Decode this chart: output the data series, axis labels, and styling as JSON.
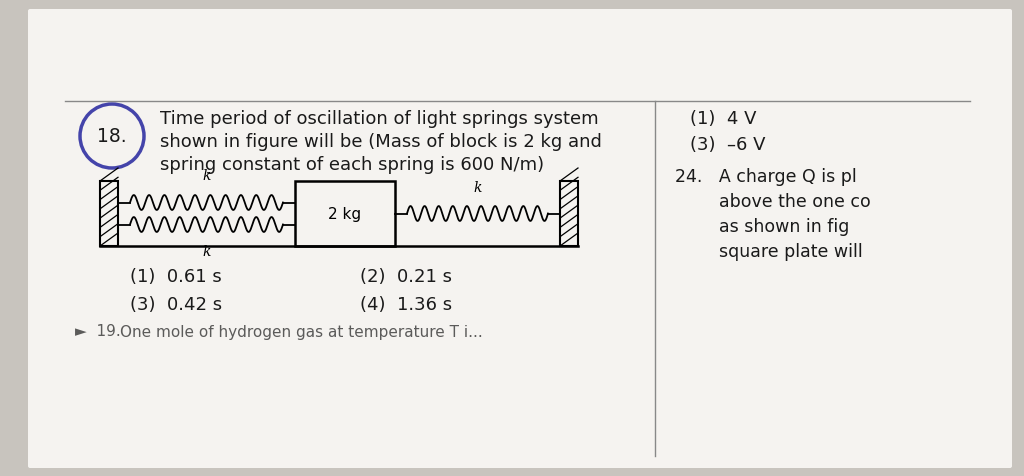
{
  "page_bg": "#f0eeec",
  "paper_bg": "#f5f3f0",
  "outer_bg": "#c8c4be",
  "question_number": "18.",
  "question_text_line1": "Time period of oscillation of light springs system",
  "question_text_line2": "shown in figure will be (Mass of block is 2 kg and",
  "question_text_line3": "spring constant of each spring is 600 N/m)",
  "options_left": [
    "(1)  0.61 s",
    "(3)  0.42 s"
  ],
  "options_right": [
    "(2)  0.21 s",
    "(4)  1.36 s"
  ],
  "right_col_line1": "(1)  4 V",
  "right_col_line2": "(3)  –6 V",
  "right_col_q24_line1": "24.   A charge Q is pl",
  "right_col_q24_line2": "        above the one co",
  "right_col_q24_line3": "        as shown in fig",
  "right_col_q24_line4": "        square plate will",
  "circle_color": "#4444aa",
  "text_color": "#1a1a1a",
  "divider_color": "#888888",
  "spring_color": "#1a1a1a",
  "wall_hatch_color": "#1a1a1a"
}
